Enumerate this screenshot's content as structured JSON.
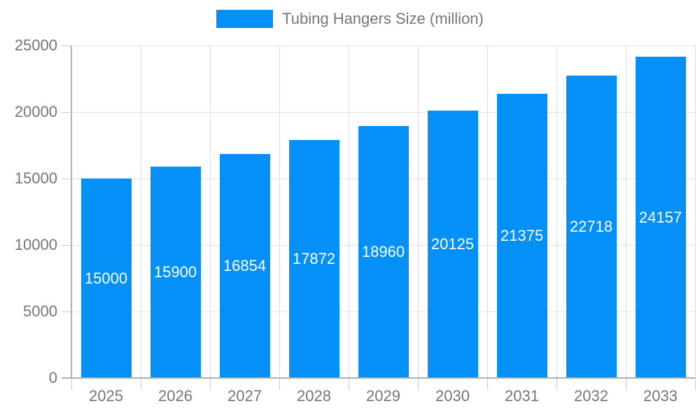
{
  "legend": {
    "label": "Tubing Hangers Size (million)"
  },
  "colors": {
    "bar": "#0590f8",
    "axis_text": "#757575",
    "grid": "#e2e2e2",
    "grid_vertical": "#dcdcdc",
    "axis_line": "#b0b0b0",
    "tick": "#c9c9c9",
    "value_label": "#ffffff",
    "background": "#ffffff"
  },
  "chart_data": {
    "type": "bar",
    "title": "Tubing Hangers Size (million)",
    "series_name": "Tubing Hangers Size (million)",
    "categories": [
      "2025",
      "2026",
      "2027",
      "2028",
      "2029",
      "2030",
      "2031",
      "2032",
      "2033"
    ],
    "values": [
      15000,
      15900,
      16854,
      17872,
      18960,
      20125,
      21375,
      22718,
      24157
    ],
    "value_labels": [
      "15000",
      "15900",
      "16854",
      "17872",
      "18960",
      "20125",
      "21375",
      "22718",
      "24157"
    ],
    "xlabel": "",
    "ylabel": "",
    "ylim": [
      0,
      25000
    ],
    "yticks": [
      0,
      5000,
      10000,
      15000,
      20000,
      25000
    ],
    "ytick_labels": [
      "0",
      "5000",
      "10000",
      "15000",
      "20000",
      "25000"
    ],
    "grid": "on",
    "legend_position": "top-center",
    "bar_width_fraction": 0.73,
    "value_label_position": "inside-middle"
  }
}
